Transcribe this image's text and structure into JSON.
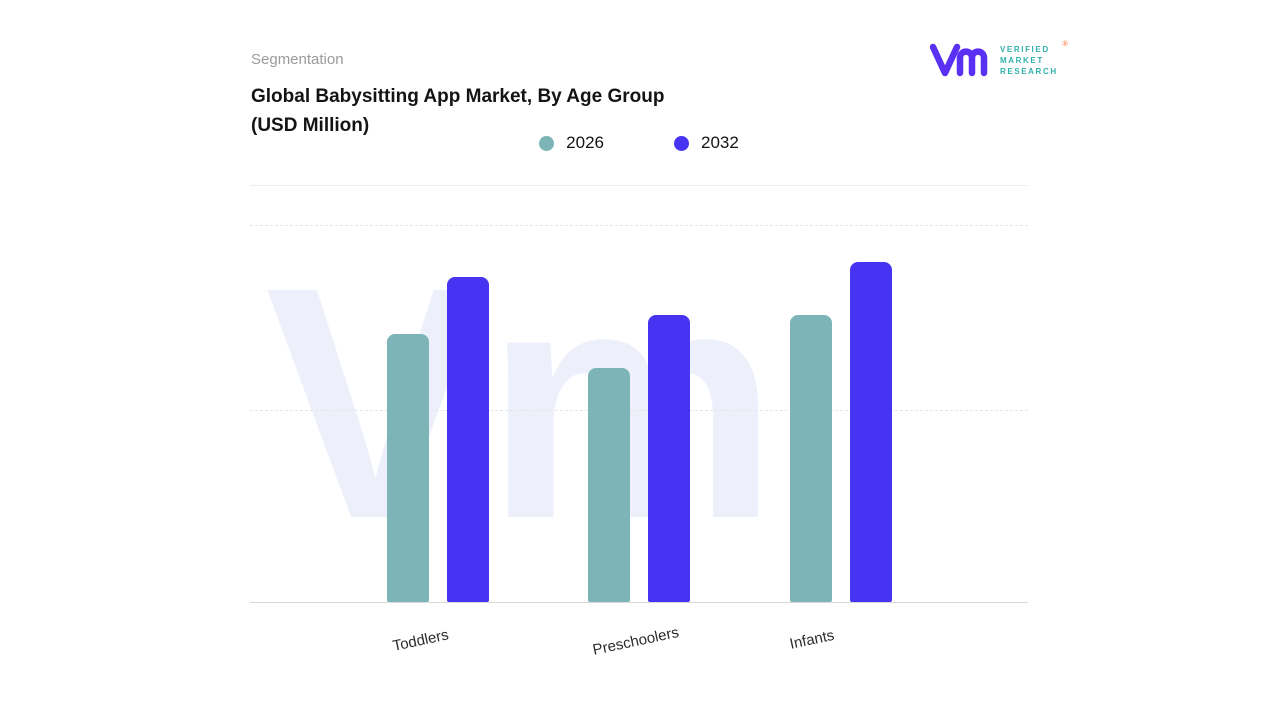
{
  "header": {
    "eyebrow": "Segmentation",
    "title_line1": "Global Babysitting App Market, By Age Group",
    "title_line2": "(USD Million)"
  },
  "logo": {
    "brand_line1": "VERIFIED",
    "brand_line2": "MARKET",
    "brand_line3": "RESEARCH",
    "registered_mark": "®",
    "mark_color": "#5A31F4",
    "text_color": "#2FB0AA"
  },
  "chart_data": {
    "type": "bar",
    "title": "Global Babysitting App Market, By Age Group (USD Million)",
    "categories": [
      "Toddlers",
      "Preschoolers",
      "Infants"
    ],
    "series": [
      {
        "name": "2026",
        "color": "#7CB4B8",
        "values": [
          71,
          62,
          76
        ]
      },
      {
        "name": "2032",
        "color": "#4733F2",
        "values": [
          86,
          76,
          90
        ]
      }
    ],
    "xlabel": "",
    "ylabel": "",
    "ylim": [
      0,
      100
    ],
    "legend_position": "top-center",
    "grid": "horizontal-dashed",
    "accent_teal": "#7CB4B8",
    "accent_purple": "#4733F2",
    "watermark_color": "#EDEFFB"
  }
}
